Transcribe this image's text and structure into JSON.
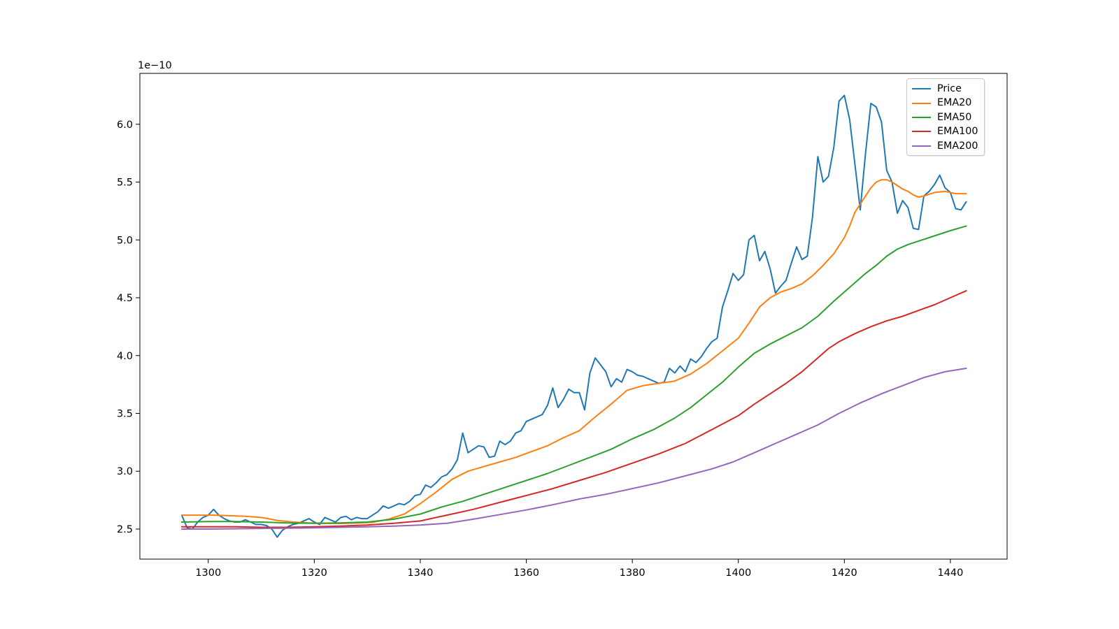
{
  "chart_data": {
    "type": "line",
    "title": "",
    "xlabel": "",
    "ylabel": "",
    "y_offset_text": "1e−10",
    "grid": false,
    "legend_position": "upper right",
    "xlim": [
      1287.1,
      1450.7
    ],
    "ylim": [
      2.24,
      6.44
    ],
    "xticks": [
      1300,
      1320,
      1340,
      1360,
      1380,
      1400,
      1420,
      1440
    ],
    "yticks": [
      2.5,
      3.0,
      3.5,
      4.0,
      4.5,
      5.0,
      5.5,
      6.0
    ],
    "series": [
      {
        "name": "Price",
        "color": "#1f77b4",
        "x": [
          1295,
          1296,
          1297,
          1298,
          1299,
          1300,
          1301,
          1302,
          1303,
          1304,
          1305,
          1306,
          1307,
          1308,
          1309,
          1310,
          1311,
          1312,
          1313,
          1314,
          1315,
          1316,
          1317,
          1318,
          1319,
          1320,
          1321,
          1322,
          1323,
          1324,
          1325,
          1326,
          1327,
          1328,
          1329,
          1330,
          1331,
          1332,
          1333,
          1334,
          1335,
          1336,
          1337,
          1338,
          1339,
          1340,
          1341,
          1342,
          1343,
          1344,
          1345,
          1346,
          1347,
          1348,
          1349,
          1350,
          1351,
          1352,
          1353,
          1354,
          1355,
          1356,
          1357,
          1358,
          1359,
          1360,
          1361,
          1362,
          1363,
          1364,
          1365,
          1366,
          1367,
          1368,
          1369,
          1370,
          1371,
          1372,
          1373,
          1374,
          1375,
          1376,
          1377,
          1378,
          1379,
          1380,
          1381,
          1382,
          1383,
          1384,
          1385,
          1386,
          1387,
          1388,
          1389,
          1390,
          1391,
          1392,
          1393,
          1394,
          1395,
          1396,
          1397,
          1398,
          1399,
          1400,
          1401,
          1402,
          1403,
          1404,
          1405,
          1406,
          1407,
          1408,
          1409,
          1410,
          1411,
          1412,
          1413,
          1414,
          1415,
          1416,
          1417,
          1418,
          1419,
          1420,
          1421,
          1422,
          1423,
          1424,
          1425,
          1426,
          1427,
          1428,
          1429,
          1430,
          1431,
          1432,
          1433,
          1434,
          1435,
          1436,
          1437,
          1438,
          1439,
          1440,
          1441,
          1442,
          1443
        ],
        "y": [
          2.62,
          2.51,
          2.5,
          2.56,
          2.6,
          2.62,
          2.67,
          2.62,
          2.59,
          2.57,
          2.56,
          2.56,
          2.58,
          2.56,
          2.54,
          2.54,
          2.53,
          2.5,
          2.43,
          2.49,
          2.52,
          2.54,
          2.55,
          2.57,
          2.59,
          2.56,
          2.54,
          2.6,
          2.58,
          2.56,
          2.6,
          2.61,
          2.58,
          2.6,
          2.59,
          2.59,
          2.62,
          2.65,
          2.7,
          2.68,
          2.7,
          2.72,
          2.71,
          2.74,
          2.79,
          2.8,
          2.88,
          2.86,
          2.9,
          2.95,
          2.97,
          3.02,
          3.1,
          3.33,
          3.16,
          3.19,
          3.22,
          3.21,
          3.12,
          3.13,
          3.26,
          3.23,
          3.26,
          3.33,
          3.35,
          3.43,
          3.45,
          3.47,
          3.49,
          3.57,
          3.72,
          3.55,
          3.62,
          3.71,
          3.68,
          3.68,
          3.53,
          3.85,
          3.98,
          3.92,
          3.86,
          3.73,
          3.8,
          3.77,
          3.88,
          3.86,
          3.83,
          3.82,
          3.8,
          3.78,
          3.76,
          3.77,
          3.89,
          3.85,
          3.91,
          3.86,
          3.97,
          3.94,
          3.99,
          4.06,
          4.12,
          4.15,
          4.42,
          4.56,
          4.71,
          4.65,
          4.7,
          5.0,
          5.04,
          4.82,
          4.9,
          4.75,
          4.54,
          4.6,
          4.65,
          4.8,
          4.94,
          4.83,
          4.86,
          5.2,
          5.72,
          5.5,
          5.55,
          5.8,
          6.2,
          6.25,
          6.04,
          5.65,
          5.26,
          5.75,
          6.18,
          6.15,
          6.02,
          5.6,
          5.5,
          5.23,
          5.34,
          5.28,
          5.1,
          5.09,
          5.38,
          5.42,
          5.48,
          5.56,
          5.45,
          5.41,
          5.27,
          5.26,
          5.33
        ]
      },
      {
        "name": "EMA20",
        "color": "#ff7f0e",
        "x": [
          1295,
          1298,
          1301,
          1304,
          1307,
          1310,
          1313,
          1316,
          1319,
          1322,
          1325,
          1328,
          1331,
          1334,
          1337,
          1340,
          1343,
          1346,
          1349,
          1352,
          1355,
          1358,
          1361,
          1364,
          1367,
          1370,
          1373,
          1376,
          1379,
          1382,
          1385,
          1388,
          1391,
          1394,
          1397,
          1400,
          1402,
          1404,
          1406,
          1408,
          1410,
          1412,
          1414,
          1416,
          1418,
          1420,
          1421,
          1422,
          1423,
          1424,
          1425,
          1426,
          1427,
          1428,
          1429,
          1430,
          1431,
          1432,
          1433,
          1434,
          1435,
          1437,
          1439,
          1441,
          1443
        ],
        "y": [
          2.62,
          2.62,
          2.62,
          2.615,
          2.61,
          2.6,
          2.575,
          2.56,
          2.553,
          2.549,
          2.548,
          2.552,
          2.558,
          2.585,
          2.63,
          2.72,
          2.82,
          2.93,
          3.0,
          3.04,
          3.08,
          3.12,
          3.17,
          3.22,
          3.29,
          3.35,
          3.47,
          3.58,
          3.7,
          3.74,
          3.76,
          3.78,
          3.84,
          3.93,
          4.04,
          4.15,
          4.28,
          4.42,
          4.5,
          4.55,
          4.58,
          4.62,
          4.69,
          4.78,
          4.88,
          5.02,
          5.12,
          5.24,
          5.31,
          5.38,
          5.45,
          5.5,
          5.52,
          5.52,
          5.5,
          5.47,
          5.44,
          5.42,
          5.39,
          5.37,
          5.38,
          5.41,
          5.42,
          5.4,
          5.4
        ]
      },
      {
        "name": "EMA50",
        "color": "#2ca02c",
        "x": [
          1295,
          1300,
          1305,
          1310,
          1315,
          1320,
          1325,
          1330,
          1335,
          1340,
          1344,
          1348,
          1352,
          1356,
          1360,
          1364,
          1368,
          1372,
          1376,
          1380,
          1384,
          1388,
          1391,
          1394,
          1397,
          1400,
          1403,
          1406,
          1409,
          1412,
          1415,
          1418,
          1421,
          1424,
          1426,
          1428,
          1430,
          1432,
          1434,
          1436,
          1438,
          1440,
          1443
        ],
        "y": [
          2.56,
          2.565,
          2.565,
          2.56,
          2.553,
          2.55,
          2.553,
          2.56,
          2.585,
          2.63,
          2.69,
          2.74,
          2.8,
          2.86,
          2.92,
          2.98,
          3.05,
          3.12,
          3.19,
          3.28,
          3.36,
          3.46,
          3.55,
          3.66,
          3.77,
          3.9,
          4.02,
          4.1,
          4.17,
          4.24,
          4.34,
          4.47,
          4.59,
          4.71,
          4.78,
          4.86,
          4.92,
          4.96,
          4.99,
          5.02,
          5.05,
          5.08,
          5.12
        ]
      },
      {
        "name": "EMA100",
        "color": "#d62728",
        "x": [
          1295,
          1300,
          1305,
          1310,
          1315,
          1320,
          1325,
          1330,
          1335,
          1340,
          1345,
          1350,
          1355,
          1360,
          1365,
          1370,
          1375,
          1380,
          1385,
          1390,
          1395,
          1400,
          1403,
          1406,
          1409,
          1412,
          1415,
          1417,
          1419,
          1422,
          1425,
          1428,
          1431,
          1434,
          1437,
          1440,
          1443
        ],
        "y": [
          2.52,
          2.52,
          2.52,
          2.515,
          2.515,
          2.52,
          2.525,
          2.535,
          2.55,
          2.57,
          2.62,
          2.67,
          2.73,
          2.79,
          2.85,
          2.92,
          2.99,
          3.07,
          3.15,
          3.24,
          3.36,
          3.48,
          3.58,
          3.67,
          3.76,
          3.86,
          3.98,
          4.06,
          4.12,
          4.19,
          4.25,
          4.3,
          4.34,
          4.39,
          4.44,
          4.5,
          4.56
        ]
      },
      {
        "name": "EMA200",
        "color": "#9467bd",
        "x": [
          1295,
          1300,
          1305,
          1310,
          1315,
          1320,
          1325,
          1330,
          1335,
          1340,
          1345,
          1350,
          1355,
          1360,
          1365,
          1370,
          1375,
          1380,
          1385,
          1390,
          1395,
          1399,
          1403,
          1407,
          1411,
          1415,
          1419,
          1423,
          1427,
          1431,
          1435,
          1439,
          1443
        ],
        "y": [
          2.5,
          2.5,
          2.502,
          2.505,
          2.508,
          2.51,
          2.515,
          2.52,
          2.525,
          2.535,
          2.55,
          2.585,
          2.625,
          2.665,
          2.71,
          2.76,
          2.8,
          2.85,
          2.9,
          2.96,
          3.02,
          3.08,
          3.16,
          3.24,
          3.32,
          3.4,
          3.5,
          3.59,
          3.67,
          3.74,
          3.81,
          3.86,
          3.89
        ]
      }
    ]
  }
}
